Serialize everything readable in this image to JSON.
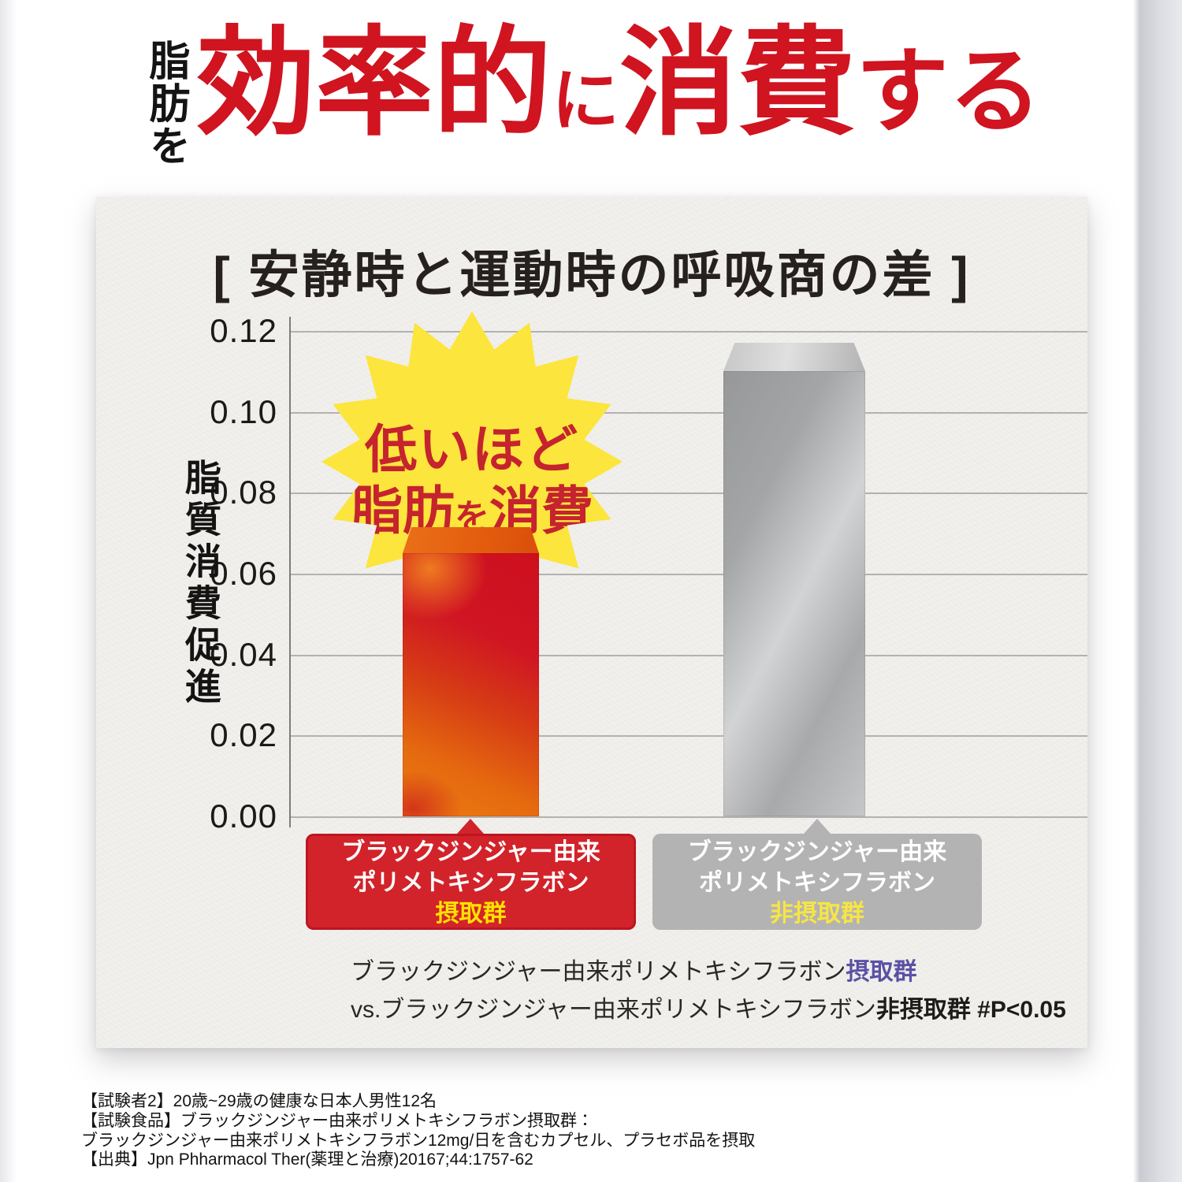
{
  "header": {
    "side_label": "脂肪を",
    "title_segments": [
      {
        "text": "効率的",
        "size": "large"
      },
      {
        "text": "に",
        "size": "small"
      },
      {
        "text": "消費",
        "size": "large"
      },
      {
        "text": "する",
        "size": "medium"
      }
    ],
    "accent_color": "#d01420"
  },
  "panel": {
    "title": "[ 安静時と運動時の呼吸商の差 ]",
    "background": "#f1f0ed"
  },
  "axis": {
    "label": "脂質消費促進",
    "ticks": [
      "0.12",
      "0.10",
      "0.08",
      "0.06",
      "0.04",
      "0.02",
      "0.00"
    ]
  },
  "callout": {
    "line1": "低いほど",
    "line2_big1": "脂肪",
    "line2_small": "を",
    "line2_big2": "消費",
    "fill_color": "#fce53c",
    "text_color": "#c5232e"
  },
  "bars": {
    "intake": {
      "label_line1": "ブラックジンジャー由来",
      "label_line2": "ポリメトキシフラボン",
      "label_line3": "摂取群",
      "box_color": "#d2232a",
      "line3_color": "#ffe100"
    },
    "nointake": {
      "label_line1": "ブラックジンジャー由来",
      "label_line2": "ポリメトキシフラボン",
      "label_line3": "非摂取群",
      "box_color": "#b3b3b3",
      "line3_color": "#f7e545"
    }
  },
  "caption": {
    "line1_normal": "ブラックジンジャー由来ポリメトキシフラボン",
    "line1_highlight": "摂取群",
    "line2_normal": "vs.ブラックジンジャー由来ポリメトキシフラボン",
    "line2_bold": "非摂取群",
    "line2_stat": " #P<0.05",
    "highlight_color": "#5a51a5"
  },
  "footnotes": [
    "【試験者2】20歳~29歳の健康な日本人男性12名",
    "【試験食品】ブラックジンジャー由来ポリメトキシフラボン摂取群：",
    "ブラックジンジャー由来ポリメトキシフラボン12mg/日を含むカプセル、プラセボ品を摂取",
    "【出典】Jpn Phharmacol Ther(薬理と治療)20167;44:1757-62"
  ],
  "chart_data": {
    "type": "bar",
    "title": "安静時と運動時の呼吸商の差",
    "ylabel": "脂質消費促進",
    "categories": [
      "ブラックジンジャー由来ポリメトキシフラボン摂取群",
      "ブラックジンジャー由来ポリメトキシフラボン非摂取群"
    ],
    "values": [
      0.065,
      0.11
    ],
    "ylim": [
      0,
      0.12
    ],
    "ytick_interval": 0.02,
    "grid": true,
    "legend_position": "none",
    "annotation": "低いほど脂肪を消費",
    "significance": "#P<0.05",
    "bar_color_intake": "#d0121f",
    "bar_color_nointake": "#b0b1b3"
  }
}
